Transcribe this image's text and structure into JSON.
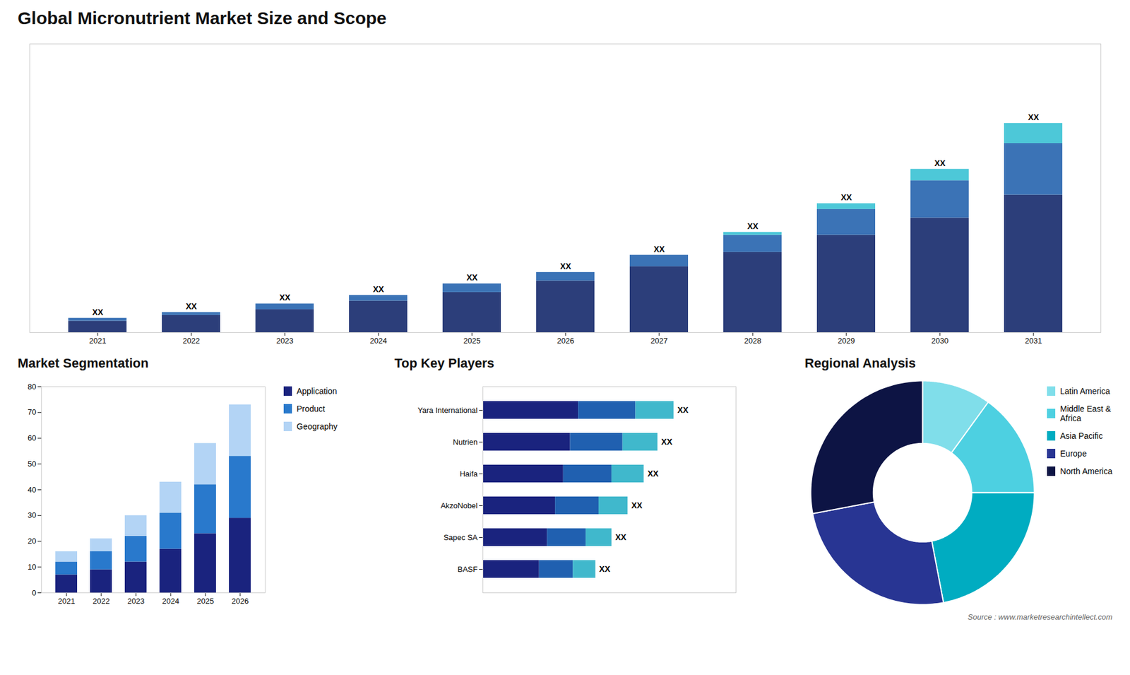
{
  "chart_data": [
    {
      "type": "bar",
      "title": "Global Micronutrient Market Size and Scope",
      "stacked": true,
      "categories": [
        "2021",
        "2022",
        "2023",
        "2024",
        "2025",
        "2026",
        "2027",
        "2028",
        "2029",
        "2030",
        "2031"
      ],
      "series": [
        {
          "color": "#2c3e7a",
          "values": [
            4,
            6,
            8,
            11,
            14,
            18,
            23,
            28,
            34,
            40,
            48
          ]
        },
        {
          "color": "#3b73b6",
          "values": [
            1,
            1,
            2,
            2,
            3,
            3,
            4,
            6,
            9,
            13,
            18
          ]
        },
        {
          "color": "#4dc8d8",
          "values": [
            0,
            0,
            0,
            0,
            0,
            0,
            0,
            1,
            2,
            4,
            7
          ]
        }
      ],
      "ylim": [
        0,
        100.74
      ],
      "tick_labels": "x",
      "grid": false,
      "data_labels": true,
      "value_labels": [
        "XX",
        "XX",
        "XX",
        "XX",
        "XX",
        "XX",
        "XX",
        "XX",
        "XX",
        "XX",
        "XX"
      ],
      "annotations": [
        "Source : www.marketresearchintellect.com"
      ]
    },
    {
      "type": "bar",
      "title": "Market Segmentation",
      "stacked": true,
      "categories": [
        "2021",
        "2022",
        "2023",
        "2024",
        "2025",
        "2026"
      ],
      "series": [
        {
          "name": "Application",
          "color": "#1a237e",
          "values": [
            7,
            9,
            12,
            17,
            23,
            29
          ]
        },
        {
          "name": "Product",
          "color": "#2979cc",
          "values": [
            5,
            7,
            10,
            14,
            19,
            24
          ]
        },
        {
          "name": "Geography",
          "color": "#b3d4f5",
          "values": [
            4,
            5,
            8,
            12,
            16,
            20
          ]
        }
      ],
      "ylim": [
        0,
        80
      ],
      "yticks": [
        0,
        10,
        20,
        30,
        40,
        50,
        60,
        70,
        80
      ],
      "grid": false,
      "legend": "right"
    },
    {
      "type": "bar",
      "title": "Top Key Players",
      "orientation": "horizontal",
      "stacked": true,
      "categories": [
        "Yara International",
        "Nutrien",
        "Haifa",
        "AkzoNobel",
        "Sapec SA",
        "BASF"
      ],
      "series": [
        {
          "color": "#1a237e",
          "values": [
            0.415,
            0.38,
            0.35,
            0.315,
            0.28,
            0.245
          ]
        },
        {
          "color": "#2060b0",
          "values": [
            0.249,
            0.228,
            0.21,
            0.189,
            0.168,
            0.147
          ]
        },
        {
          "color": "#40b8cc",
          "values": [
            0.166,
            0.152,
            0.14,
            0.126,
            0.112,
            0.098
          ]
        }
      ],
      "xlim": [
        0,
        1.1
      ],
      "tick_labels": "y",
      "grid": false,
      "data_labels": true,
      "value_labels": [
        "XX",
        "XX",
        "XX",
        "XX",
        "XX",
        "XX"
      ]
    },
    {
      "type": "donut",
      "title": "Regional Analysis",
      "categories": [
        "Latin America",
        "Middle East &\nAfrica",
        "Asia Pacific",
        "Europe",
        "North America"
      ],
      "values": [
        10,
        15,
        22,
        25,
        28
      ],
      "colors": [
        "#80deea",
        "#4dd0e1",
        "#00acc1",
        "#283593",
        "#0d1444"
      ],
      "legend": "right"
    }
  ]
}
